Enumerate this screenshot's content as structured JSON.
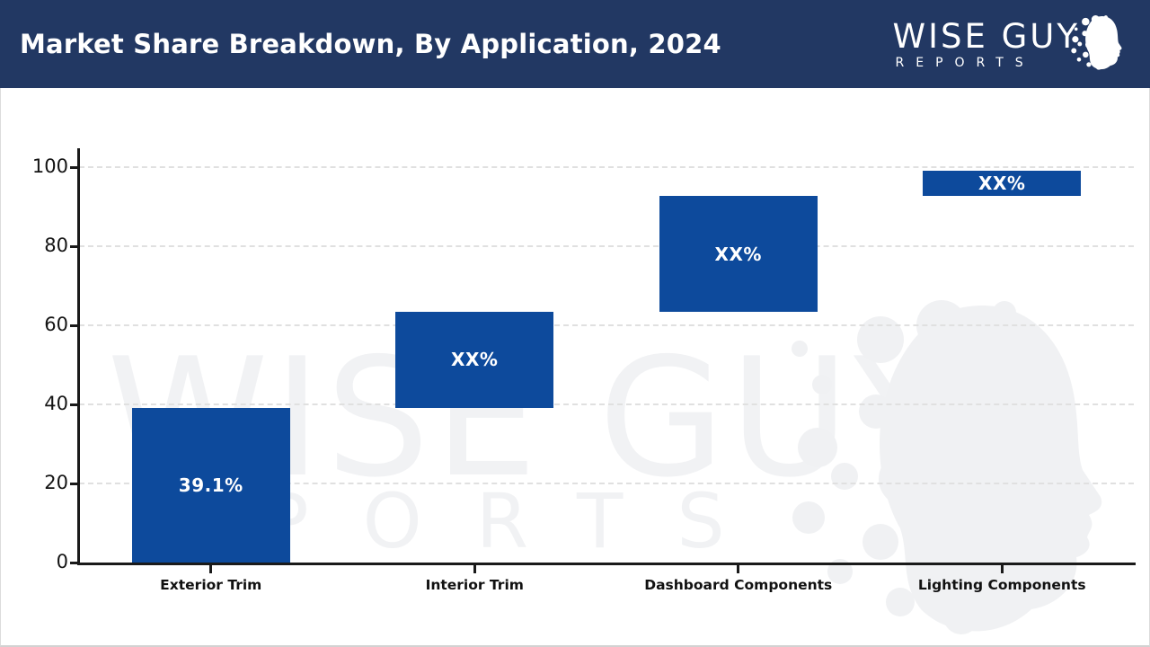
{
  "header": {
    "title": "Market Share Breakdown, By Application, 2024",
    "logo_line1": "WISE GUY",
    "logo_line2": "REPORTS",
    "bg_color": "#223863"
  },
  "watermark": {
    "line1": "WISE GUY",
    "line2": "PORTS"
  },
  "chart_data": {
    "type": "bar",
    "subtype": "waterfall-floating-bars",
    "title": "Market Share Breakdown, By Application, 2024",
    "categories": [
      "Exterior Trim",
      "Interior Trim",
      "Dashboard Components",
      "Lighting Components"
    ],
    "segments": [
      {
        "category": "Exterior Trim",
        "start": 0,
        "end": 39.1,
        "label": "39.1%"
      },
      {
        "category": "Interior Trim",
        "start": 39.1,
        "end": 63.4,
        "label": "XX%"
      },
      {
        "category": "Dashboard Components",
        "start": 63.4,
        "end": 92.7,
        "label": "XX%"
      },
      {
        "category": "Lighting Components",
        "start": 92.7,
        "end": 99.1,
        "label": "XX%"
      }
    ],
    "yticks": [
      0,
      20,
      40,
      60,
      80,
      100
    ],
    "ylim": [
      0,
      100
    ],
    "grid": "horizontal-dashed",
    "bar_color": "#0d4a9c",
    "value_label_color": "#ffffff",
    "axis_color": "#1a1a1a",
    "legend": "none"
  }
}
